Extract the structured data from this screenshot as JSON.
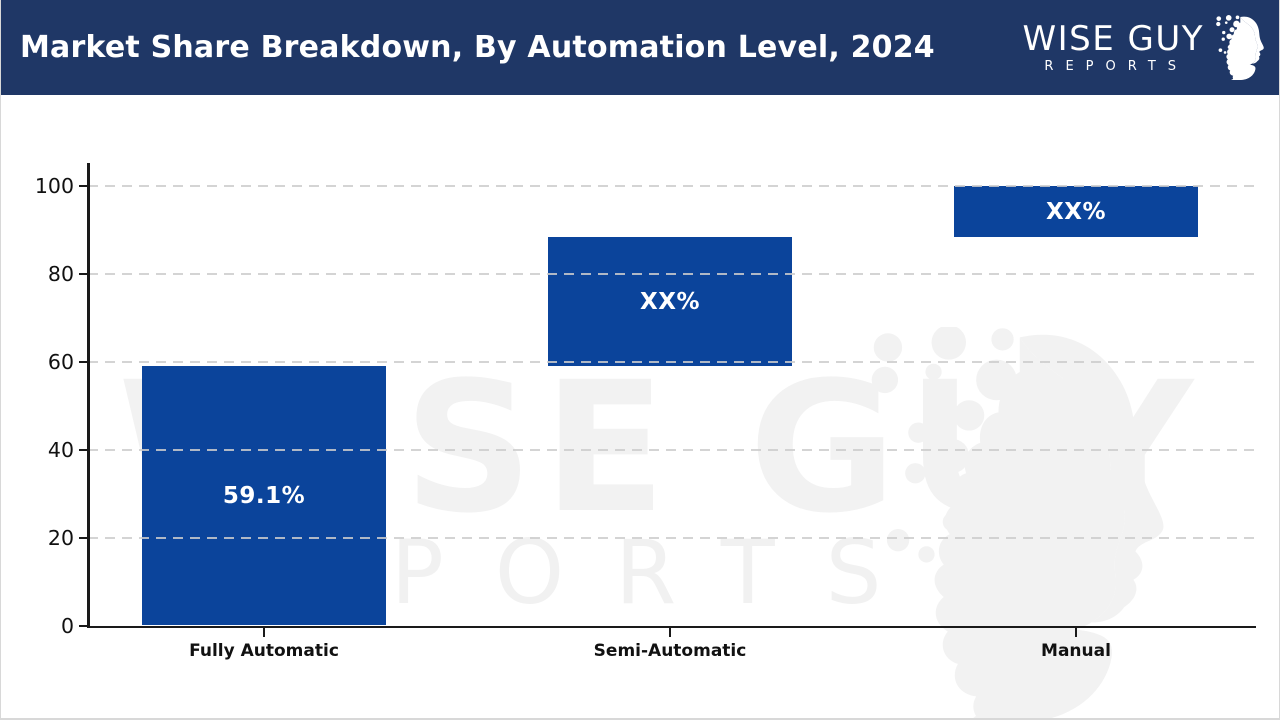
{
  "header": {
    "title": "Market Share Breakdown, By Automation Level, 2024",
    "logo": {
      "line1": "WISE GUY",
      "line2": "REPORTS"
    }
  },
  "watermark": {
    "line1": "WISE GUY",
    "line2": "REPORTS"
  },
  "colors": {
    "header_bg": "#1F3766",
    "bar_blue": "#0B449B",
    "grid": "#D4D4D4",
    "axis": "#1A1A1A",
    "watermark": "#F2F2F2"
  },
  "chart_data": {
    "type": "bar",
    "subtype": "floating-waterfall",
    "title": "Market Share Breakdown, By Automation Level, 2024",
    "categories": [
      "Fully Automatic",
      "Semi-Automatic",
      "Manual"
    ],
    "series": [
      {
        "name": "Market Share",
        "segments": [
          {
            "category": "Fully Automatic",
            "start": 0,
            "end": 59.1,
            "label": "59.1%"
          },
          {
            "category": "Semi-Automatic",
            "start": 59.1,
            "end": 88.3,
            "label": "XX%"
          },
          {
            "category": "Manual",
            "start": 88.3,
            "end": 100,
            "label": "XX%"
          }
        ]
      }
    ],
    "yticks": [
      0,
      20,
      40,
      60,
      80,
      100
    ],
    "ylim": [
      0,
      105
    ],
    "xlabel": "",
    "ylabel": "",
    "grid": "horizontal-dashed",
    "legend": "none",
    "bar_color": "#0B449B",
    "label_color": "#ffffff"
  }
}
